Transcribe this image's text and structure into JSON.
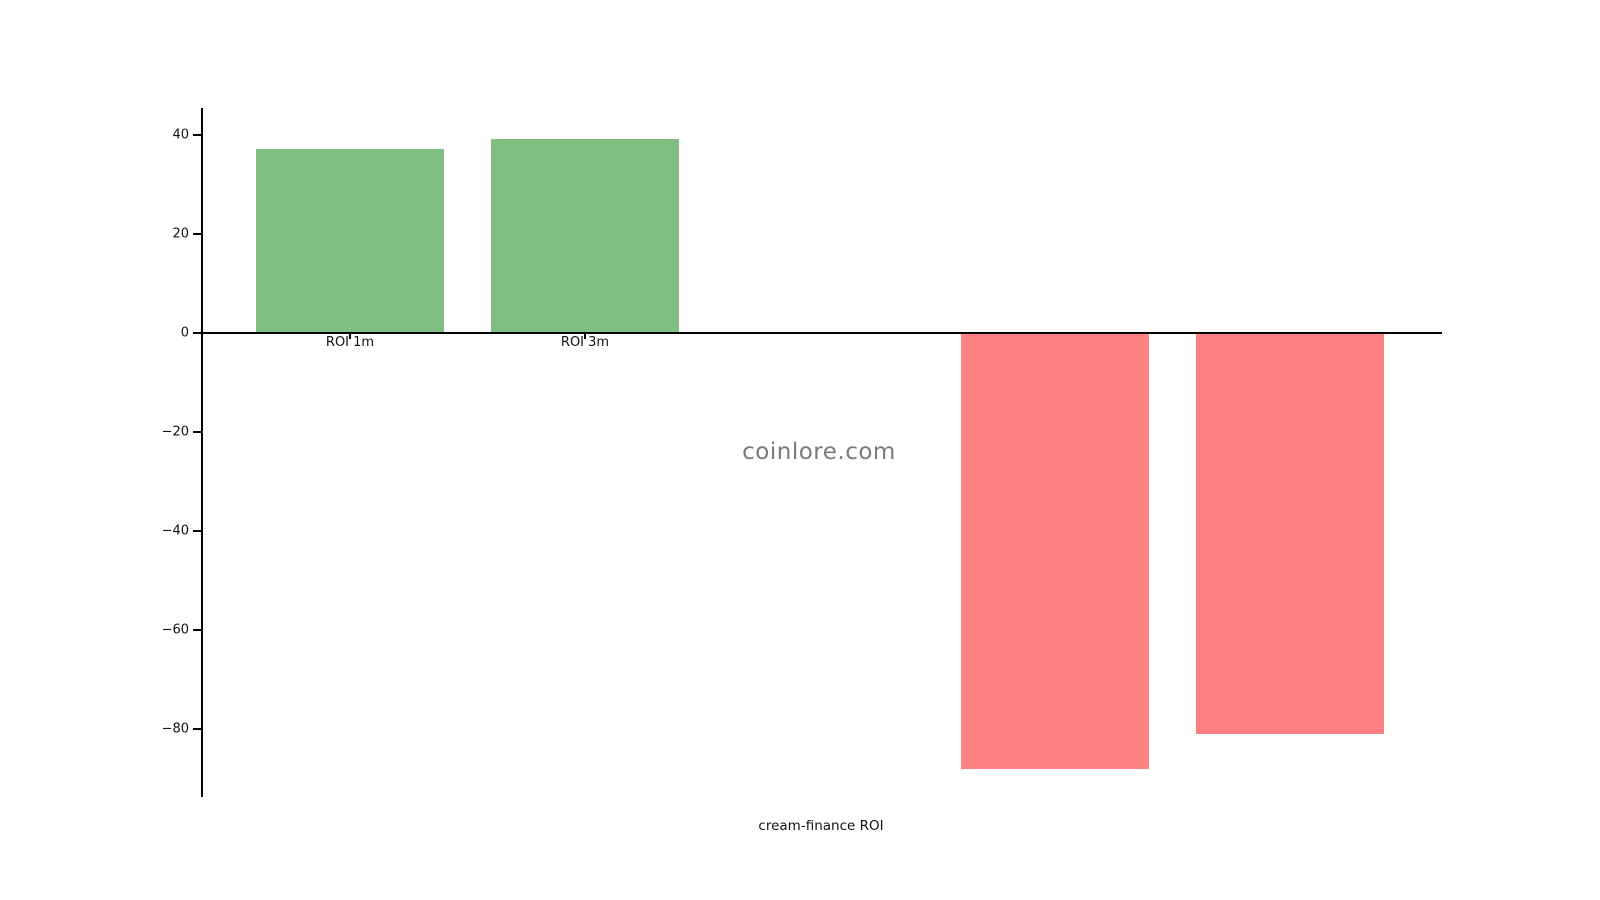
{
  "watermark": {
    "text": "coinlore.com",
    "color": "#7a7a7a"
  },
  "chart_data": {
    "type": "bar",
    "title": "cream-finance ROI",
    "categories": [
      "ROI 1m",
      "ROI 3m",
      "",
      ""
    ],
    "values": [
      37.2,
      39.2,
      -88.1,
      -81.0
    ],
    "bars": [
      {
        "label": "ROI 1m",
        "value": 37.2,
        "slot": 0
      },
      {
        "label": "ROI 3m",
        "value": 39.2,
        "slot": 1
      },
      {
        "label": "",
        "value": -88.1,
        "slot": 3
      },
      {
        "label": "",
        "value": -81.0,
        "slot": 4
      }
    ],
    "yticks": [
      {
        "value": 40,
        "label": "40"
      },
      {
        "value": 20,
        "label": "20"
      },
      {
        "value": 0,
        "label": "0"
      },
      {
        "value": -20,
        "label": "−20"
      },
      {
        "value": -40,
        "label": "−40"
      },
      {
        "value": -60,
        "label": "−60"
      },
      {
        "value": -80,
        "label": "−80"
      }
    ],
    "ylim": [
      -93.7,
      45.5
    ],
    "xlabel": "",
    "ylabel": "",
    "grid": false,
    "legend": false,
    "positive_color": "#80bf80",
    "negative_color": "#ff8080",
    "axis_color": "#000000",
    "tick_label_color": "#111111"
  }
}
